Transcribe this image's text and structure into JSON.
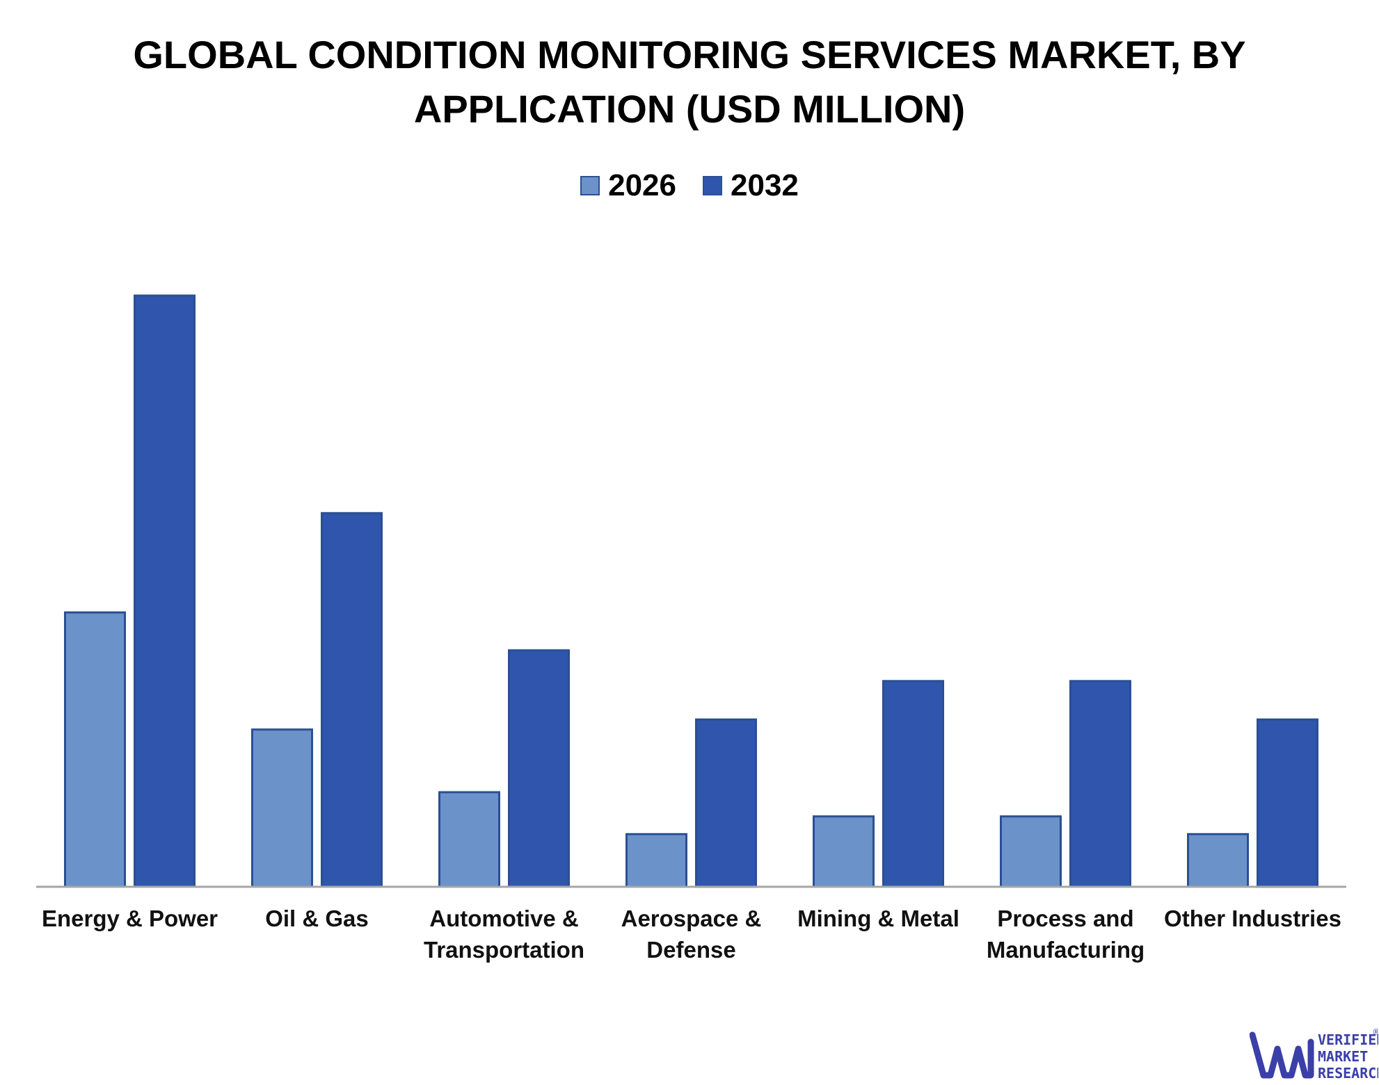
{
  "title_lines": [
    "GLOBAL CONDITION MONITORING SERVICES MARKET, BY",
    "APPLICATION (USD MILLION)"
  ],
  "legend": [
    {
      "label": "2026",
      "color": "#6b93c9"
    },
    {
      "label": "2032",
      "color": "#2f56ac"
    }
  ],
  "chart_data": {
    "type": "bar",
    "title": "GLOBAL CONDITION MONITORING SERVICES MARKET, BY APPLICATION (USD MILLION)",
    "categories": [
      [
        "Energy & Power"
      ],
      [
        "Oil & Gas"
      ],
      [
        "Automotive &",
        "Transportation"
      ],
      [
        "Aerospace &",
        "Defense"
      ],
      [
        "Mining & Metal"
      ],
      [
        "Process and",
        "Manufacturing"
      ],
      [
        "Other Industries"
      ]
    ],
    "series": [
      {
        "name": "2026",
        "color": "#6b93c9",
        "values": [
          46.4,
          26.6,
          16.0,
          8.9,
          11.9,
          11.9,
          8.9
        ]
      },
      {
        "name": "2032",
        "color": "#2f56ac",
        "values": [
          100,
          63.2,
          40.0,
          28.3,
          34.8,
          34.8,
          28.3
        ]
      }
    ],
    "xlabel": "",
    "ylabel": "",
    "ylim": [
      0,
      100
    ],
    "y_axis_shown": false,
    "grid": false,
    "legend_position": "top-center"
  },
  "logo": {
    "lines": [
      "VERIFIED",
      "MARKET",
      "RESEARCH"
    ],
    "registered_mark": "®",
    "color": "#3b3fa8"
  }
}
